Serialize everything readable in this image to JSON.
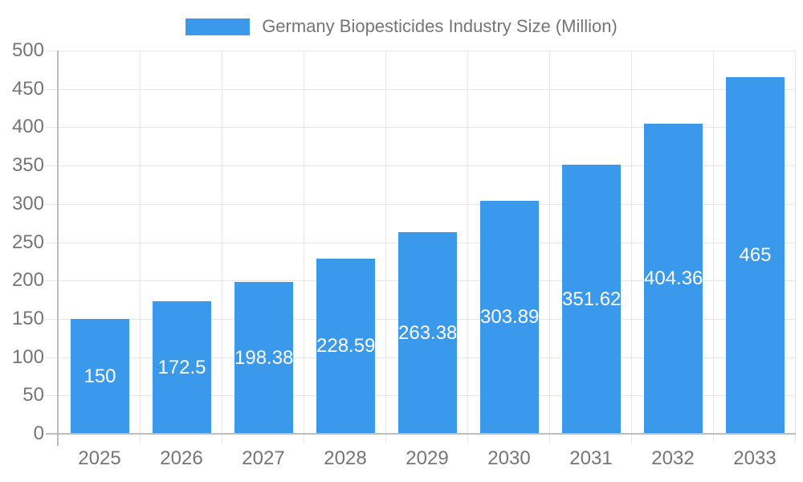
{
  "legend": {
    "label": "Germany Biopesticides Industry Size (Million)"
  },
  "chart_data": {
    "type": "bar",
    "title": "Germany Biopesticides Industry Size (Million)",
    "categories": [
      "2025",
      "2026",
      "2027",
      "2028",
      "2029",
      "2030",
      "2031",
      "2032",
      "2033"
    ],
    "values": [
      150,
      172.5,
      198.38,
      228.59,
      263.38,
      303.89,
      351.62,
      404.36,
      465
    ],
    "value_labels": [
      "150",
      "172.5",
      "198.38",
      "228.59",
      "263.38",
      "303.89",
      "351.62",
      "404.36",
      "465"
    ],
    "xlabel": "",
    "ylabel": "",
    "ylim": [
      0,
      500
    ],
    "yticks": [
      0,
      50,
      100,
      150,
      200,
      250,
      300,
      350,
      400,
      450,
      500
    ],
    "grid": true,
    "legend_position": "top",
    "series_name": "Germany Biopesticides Industry Size (Million)"
  },
  "colors": {
    "bar": "#3b99ec",
    "grid": "#e6e6e6",
    "axis": "#bdbdbd",
    "tick_text": "#757575",
    "bar_label_text": "#ffffff",
    "background": "#ffffff"
  }
}
